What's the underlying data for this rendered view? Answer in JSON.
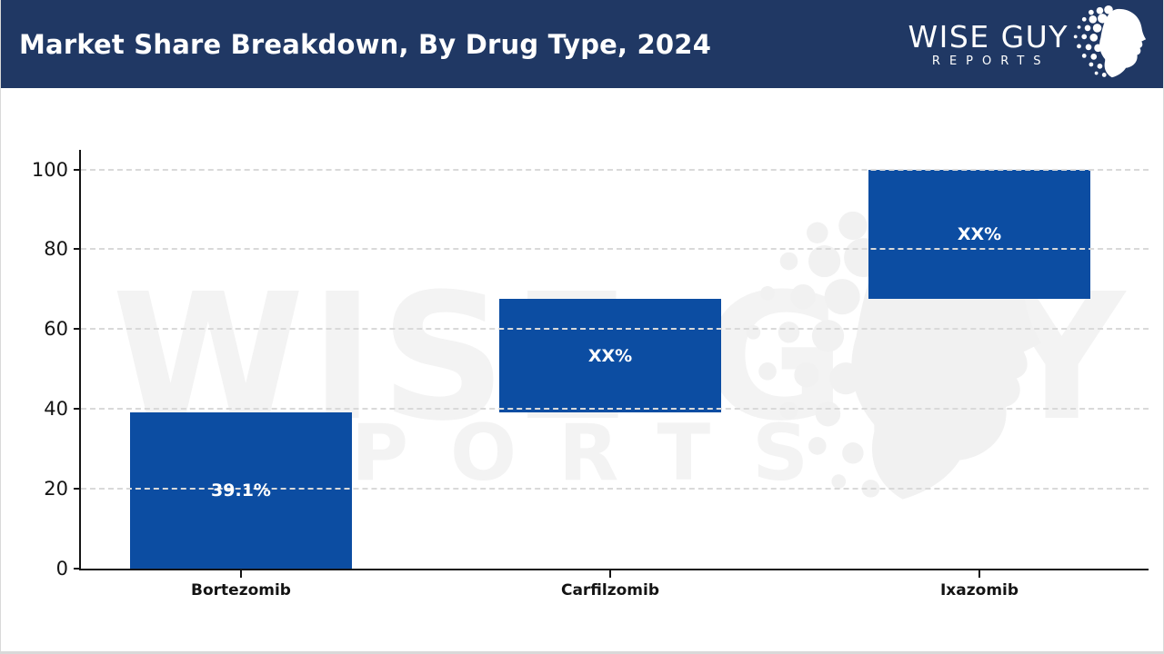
{
  "header": {
    "title": "Market Share Breakdown, By Drug Type, 2024",
    "logo": {
      "line1": "WISE GUY",
      "line2": "REPORTS"
    }
  },
  "watermark": {
    "line1": "WISE GUY",
    "line2": "REPORTS"
  },
  "chart_data": {
    "type": "bar",
    "subtype": "floating-waterfall",
    "title": "Market Share Breakdown, By Drug Type, 2024",
    "categories": [
      "Bortezomib",
      "Carfilzomib",
      "Ixazomib"
    ],
    "segments": [
      {
        "category": "Bortezomib",
        "start": 0,
        "end": 39.1,
        "label": "39.1%"
      },
      {
        "category": "Carfilzomib",
        "start": 39.1,
        "end": 67.5,
        "label": "XX%"
      },
      {
        "category": "Ixazomib",
        "start": 67.5,
        "end": 100,
        "label": "XX%"
      }
    ],
    "yticks": [
      0,
      20,
      40,
      60,
      80,
      100
    ],
    "ylim": [
      0,
      105
    ],
    "xlabel": "",
    "ylabel": "",
    "grid": "horizontal-dashed",
    "legend": "none",
    "bar_color": "#0c4da2",
    "bar_label_color": "#ffffff",
    "axis_color": "#141414",
    "grid_color": "#d9d9d9",
    "header_color": "#203864"
  }
}
